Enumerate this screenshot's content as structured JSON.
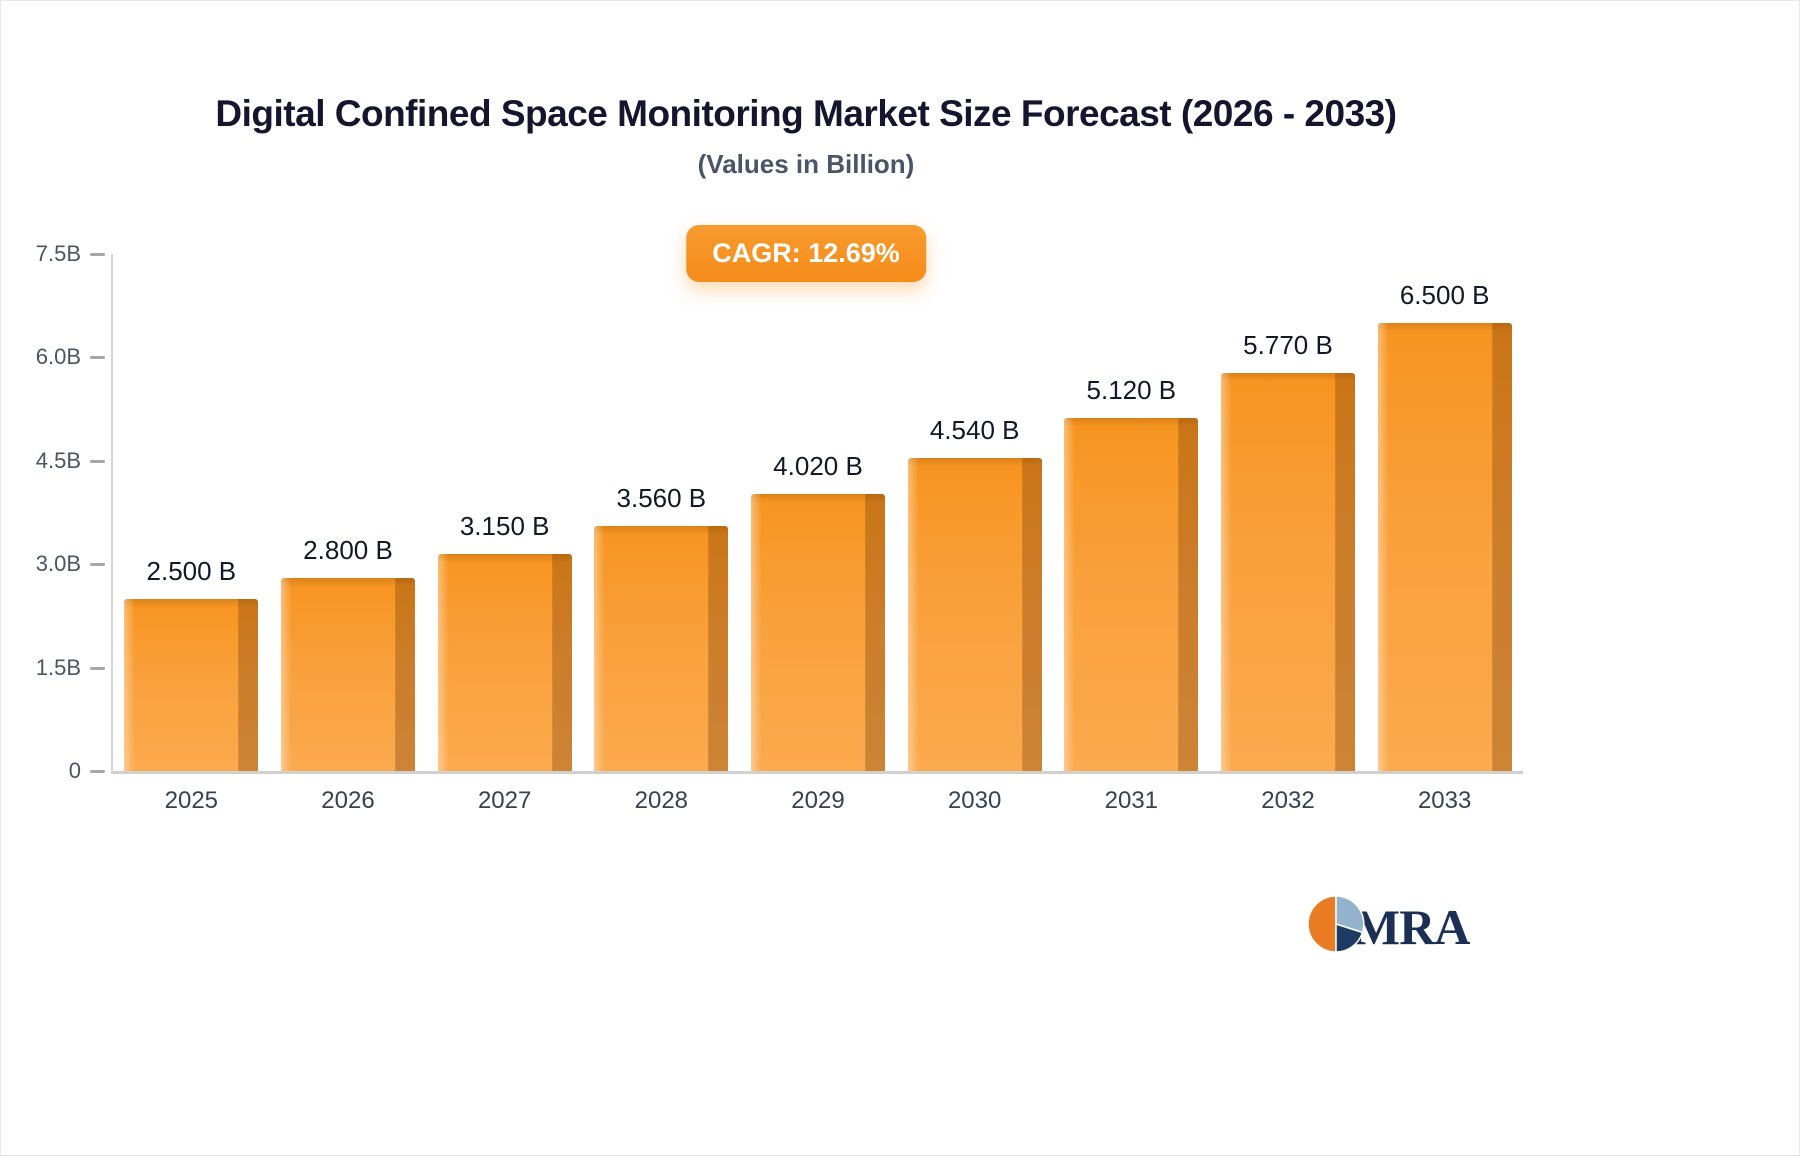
{
  "title": "Digital Confined Space Monitoring Market Size Forecast (2026 - 2033)",
  "subtitle": "(Values in Billion)",
  "badge": {
    "label": "CAGR: 12.69%",
    "bg": "#f7941e",
    "text_color": "#ffffff"
  },
  "chart_data": {
    "type": "bar",
    "title": "Digital Confined Space Monitoring Market Size Forecast (2026 - 2033)",
    "subtitle": "(Values in Billion)",
    "categories": [
      "2025",
      "2026",
      "2027",
      "2028",
      "2029",
      "2030",
      "2031",
      "2032",
      "2033"
    ],
    "values": [
      2.5,
      2.8,
      3.15,
      3.56,
      4.02,
      4.54,
      5.12,
      5.77,
      6.5
    ],
    "value_labels": [
      "2.500 B",
      "2.800 B",
      "3.150 B",
      "3.560 B",
      "4.020 B",
      "4.540 B",
      "5.120 B",
      "5.770 B",
      "6.500 B"
    ],
    "xlabel": "",
    "ylabel": "",
    "ylim": [
      0,
      7.5
    ],
    "y_ticks": [
      {
        "value": 7.5,
        "label": "7.5B"
      },
      {
        "value": 6.0,
        "label": "6.0B"
      },
      {
        "value": 4.5,
        "label": "4.5B"
      },
      {
        "value": 3.0,
        "label": "3.0B"
      },
      {
        "value": 1.5,
        "label": "1.5B"
      },
      {
        "value": 0,
        "label": "0"
      }
    ],
    "grid": false,
    "legend": false,
    "bar_color_top": "#f7941f",
    "bar_color_bottom": "#fbaa4e",
    "bar_side_color": "#b5722a"
  },
  "logo": {
    "text": "MRA",
    "icon": "pie-circle-icon",
    "icon_colors": [
      "#e97b23",
      "#93b3cc",
      "#1f3b63"
    ],
    "text_color": "#1c2f55"
  }
}
